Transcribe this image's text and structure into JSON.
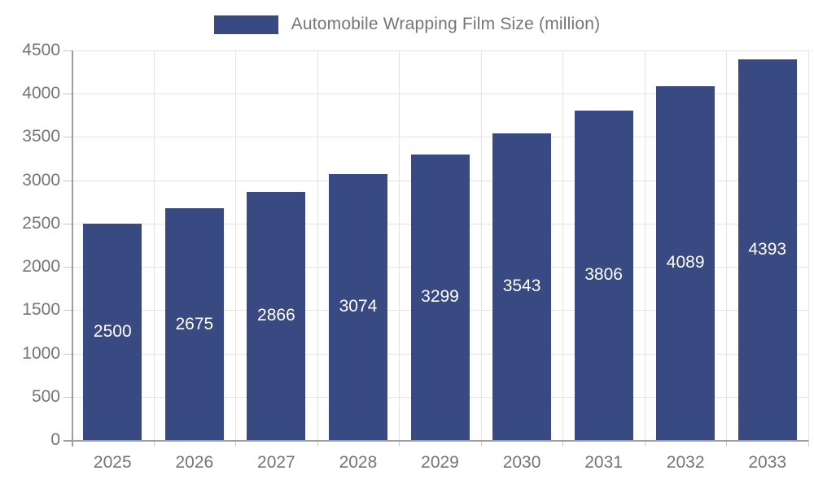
{
  "legend": {
    "label": "Automobile Wrapping Film Size (million)",
    "swatch_color": "#394a82"
  },
  "chart_data": {
    "type": "bar",
    "title": "Automobile Wrapping Film Size (million)",
    "categories": [
      "2025",
      "2026",
      "2027",
      "2028",
      "2029",
      "2030",
      "2031",
      "2032",
      "2033"
    ],
    "values": [
      2500,
      2675,
      2866,
      3074,
      3299,
      3543,
      3806,
      4089,
      4393
    ],
    "xlabel": "",
    "ylabel": "",
    "ylim": [
      0,
      4500
    ],
    "yticks": [
      0,
      500,
      1000,
      1500,
      2000,
      2500,
      3000,
      3500,
      4000,
      4500
    ],
    "grid": true,
    "legend_position": "top",
    "bar_color": "#394a82",
    "value_label_color": "#ffffff"
  },
  "colors": {
    "background": "#ffffff",
    "bar": "#394a82",
    "gridline": "#e4e4e4",
    "axis_line": "#9e9e9e",
    "tick_mark": "#c9c9c9",
    "tick_text": "#757575",
    "bar_value_text": "#ffffff"
  }
}
